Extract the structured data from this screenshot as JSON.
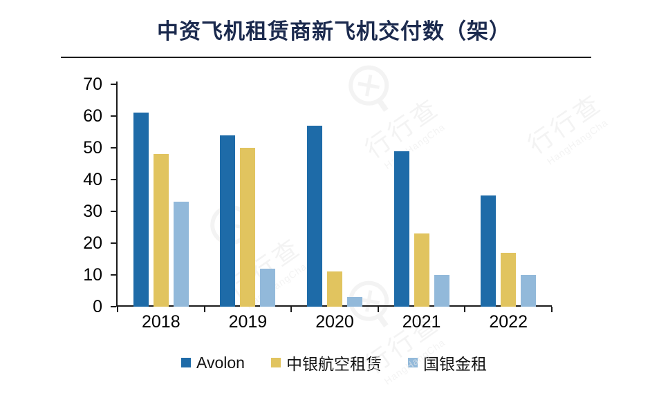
{
  "header": {
    "title": "中资飞机租赁商新飞机交付数（架）",
    "title_color": "#1b2a4e"
  },
  "watermark": {
    "cn": "行行查",
    "en": "HangHangCha"
  },
  "chart_data": {
    "type": "bar",
    "title": "中资飞机租赁商新飞机交付数（架）",
    "categories": [
      "2018",
      "2019",
      "2020",
      "2021",
      "2022"
    ],
    "series": [
      {
        "name": "Avolon",
        "color": "#1e6ba8",
        "values": [
          61,
          54,
          57,
          49,
          35
        ]
      },
      {
        "name": "中银航空租赁",
        "color": "#e1c45f",
        "values": [
          48,
          50,
          11,
          23,
          17
        ]
      },
      {
        "name": "国银金租",
        "color": "#92b9da",
        "values": [
          33,
          12,
          3,
          10,
          10
        ]
      }
    ],
    "ylim": [
      0,
      70
    ],
    "y_ticks": [
      0,
      10,
      20,
      30,
      40,
      50,
      60,
      70
    ],
    "xlabel": "",
    "ylabel": "",
    "grid": false,
    "legend_position": "bottom",
    "axis_color": "#1a1a1a",
    "background": "#ffffff"
  }
}
